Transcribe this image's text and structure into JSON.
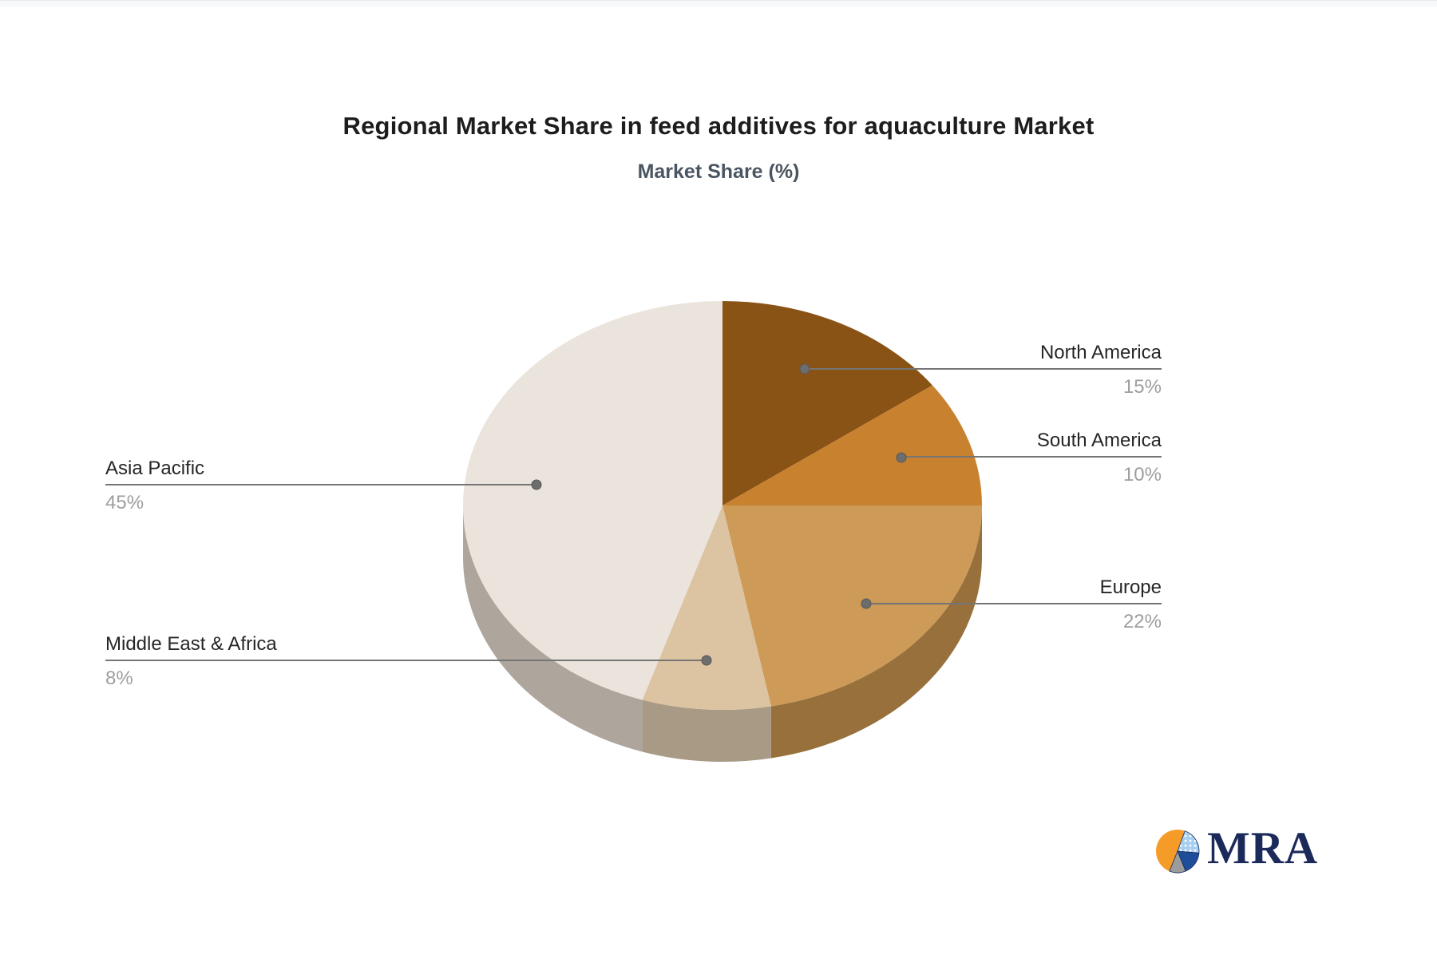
{
  "header": {
    "title": "Regional Market Share in feed additives for aquaculture Market",
    "subtitle": "Market Share (%)"
  },
  "chart_data": {
    "type": "pie",
    "style": "3d-pie",
    "title": "Regional Market Share in feed additives for aquaculture Market",
    "subtitle": "Market Share (%)",
    "unit": "%",
    "start_angle_deg": 0,
    "direction": "clockwise",
    "legend_position": "callout-labels",
    "slices": [
      {
        "label": "North America",
        "value": 15,
        "value_label": "15%",
        "color": "#8A5316",
        "side_color": "#6F4210",
        "callout_side": "right"
      },
      {
        "label": "South America",
        "value": 10,
        "value_label": "10%",
        "color": "#C8812F",
        "side_color": "#9A6223",
        "callout_side": "right"
      },
      {
        "label": "Europe",
        "value": 22,
        "value_label": "22%",
        "color": "#CD9A58",
        "side_color": "#97703C",
        "callout_side": "right"
      },
      {
        "label": "Middle East & Africa",
        "value": 8,
        "value_label": "8%",
        "color": "#DCC3A2",
        "side_color": "#A89A84",
        "callout_side": "left"
      },
      {
        "label": "Asia Pacific",
        "value": 45,
        "value_label": "45%",
        "color": "#EBE4DC",
        "side_color": "#AEA59D",
        "callout_side": "left"
      }
    ],
    "leader_line_color": "#757575",
    "leader_dot_color": "#6d6d6d"
  },
  "logo": {
    "text": "MRA",
    "text_color": "#1b2a5a",
    "glyph_colors": {
      "orange": "#F59B28",
      "light_blue": "#A7CFF0",
      "blue": "#1E4E9A",
      "gray": "#9C9C9C"
    }
  }
}
